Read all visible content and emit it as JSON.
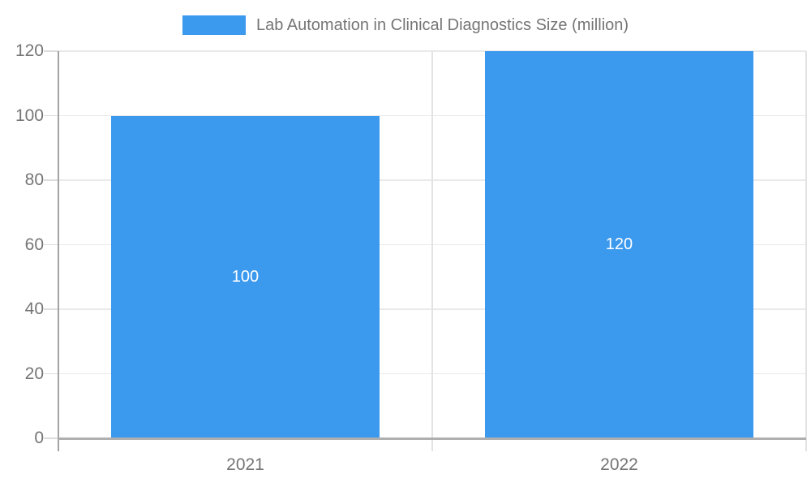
{
  "chart_data": {
    "type": "bar",
    "title": "Lab Automation in Clinical Diagnostics Size (million)",
    "categories": [
      "2021",
      "2022"
    ],
    "series": [
      {
        "name": "Lab Automation in Clinical Diagnostics Size (million)",
        "values": [
          100,
          120
        ]
      }
    ],
    "bar_labels": [
      "100",
      "120"
    ],
    "xlabel": "",
    "ylabel": "",
    "ylim": [
      0,
      120
    ],
    "yticks": [
      0,
      20,
      40,
      60,
      80,
      100,
      120
    ],
    "grid": true,
    "legend_position": "top",
    "colors": {
      "bar": "#3b99ee",
      "bar_label_text": "#ffffff",
      "axis_text": "#757575",
      "grid_line": "#e9e9e9",
      "axis_line": "#a3a3a3",
      "baseline": "#afafaf",
      "background": "#ffffff"
    }
  }
}
